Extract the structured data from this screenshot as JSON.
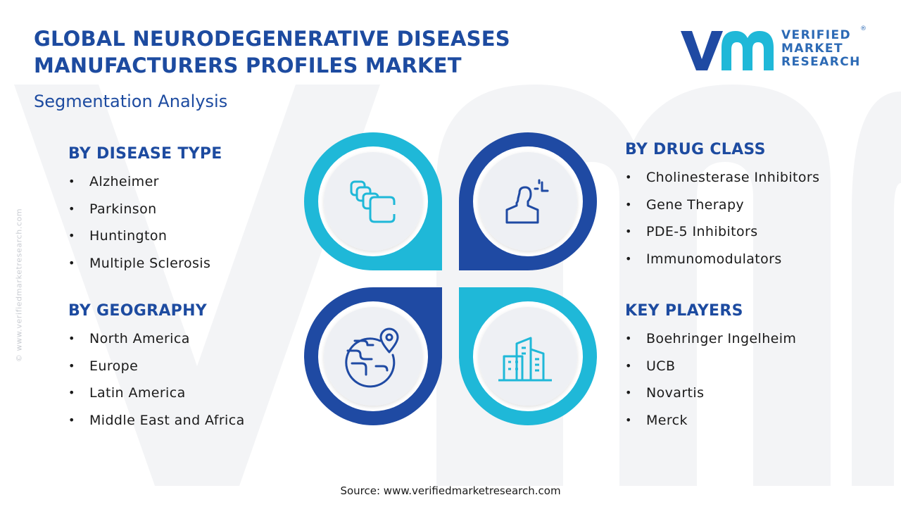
{
  "header": {
    "title_line1": "GLOBAL NEURODEGENERATIVE DISEASES",
    "title_line2": "MANUFACTURERS PROFILES MARKET",
    "subtitle": "Segmentation Analysis"
  },
  "logo": {
    "line1": "VERIFIED",
    "line2": "MARKET",
    "line3": "RESEARCH",
    "registered": "®"
  },
  "side_watermark": "© www.verifiedmarketresearch.com",
  "segments": {
    "disease_type": {
      "heading": "BY DISEASE TYPE",
      "items": [
        "Alzheimer",
        "Parkinson",
        "Huntington",
        "Multiple Sclerosis"
      ]
    },
    "geography": {
      "heading": "BY GEOGRAPHY",
      "items": [
        "North America",
        "Europe",
        "Latin America",
        "Middle East and Africa"
      ]
    },
    "drug_class": {
      "heading": "BY DRUG CLASS",
      "items": [
        "Cholinesterase Inhibitors",
        "Gene Therapy",
        "PDE-5 Inhibitors",
        "Immunomodulators"
      ]
    },
    "key_players": {
      "heading": "KEY PLAYERS",
      "items": [
        "Boehringer Ingelheim",
        "UCB",
        "Novartis",
        "Merck"
      ]
    }
  },
  "quadrant_icons": [
    "stacked-layers-icon",
    "person-analysis-icon",
    "globe-location-icon",
    "city-buildings-icon"
  ],
  "colors": {
    "title_blue": "#1d4ba0",
    "cyan": "#1fb8d8",
    "navy": "#1f4aa3",
    "logo_blue": "#2c6ab5",
    "inner_circle": "#eef0f4"
  },
  "footer": {
    "source_label": "Source:",
    "source_url": "www.verifiedmarketresearch.com"
  }
}
